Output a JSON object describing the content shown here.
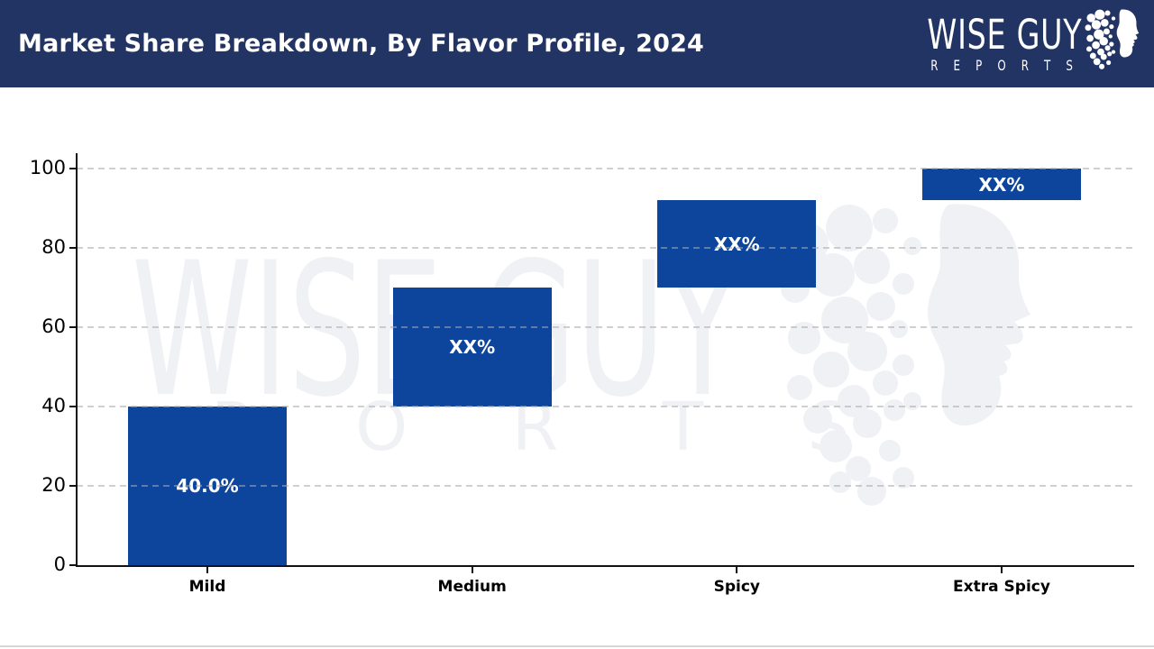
{
  "header": {
    "title": "Market Share Breakdown, By Flavor Profile, 2024",
    "logo": {
      "line1": "WISE GUY",
      "line2": "R E P O R T S"
    },
    "bg_color": "#223463"
  },
  "watermark": {
    "line1": "WISE GUY",
    "line2": "P O R T S"
  },
  "chart_data": {
    "type": "bar",
    "subtype": "waterfall-stacked-breakdown",
    "title": "Market Share Breakdown, By Flavor Profile, 2024",
    "categories": [
      "Mild",
      "Medium",
      "Spicy",
      "Extra Spicy"
    ],
    "segments": [
      {
        "category": "Mild",
        "start": 0,
        "end": 40,
        "value": 40,
        "label": "40.0%"
      },
      {
        "category": "Medium",
        "start": 40,
        "end": 70,
        "value": 30,
        "label": "XX%"
      },
      {
        "category": "Spicy",
        "start": 70,
        "end": 92,
        "value": 22,
        "label": "XX%"
      },
      {
        "category": "Extra Spicy",
        "start": 92,
        "end": 100,
        "value": 8,
        "label": "XX%"
      }
    ],
    "xlabel": "",
    "ylabel": "",
    "ylim": [
      0,
      100
    ],
    "yticks": [
      0,
      20,
      40,
      60,
      80,
      100
    ],
    "ytick_labels": [
      "0",
      "20",
      "40",
      "60",
      "80",
      "100"
    ],
    "grid": "horizontal dashed, drawn over bars",
    "legend": "none",
    "bar_color": "#0d459c",
    "bar_label_color": "#ffffff",
    "axis_color": "#111111",
    "grid_color": "#d3d3d3"
  }
}
